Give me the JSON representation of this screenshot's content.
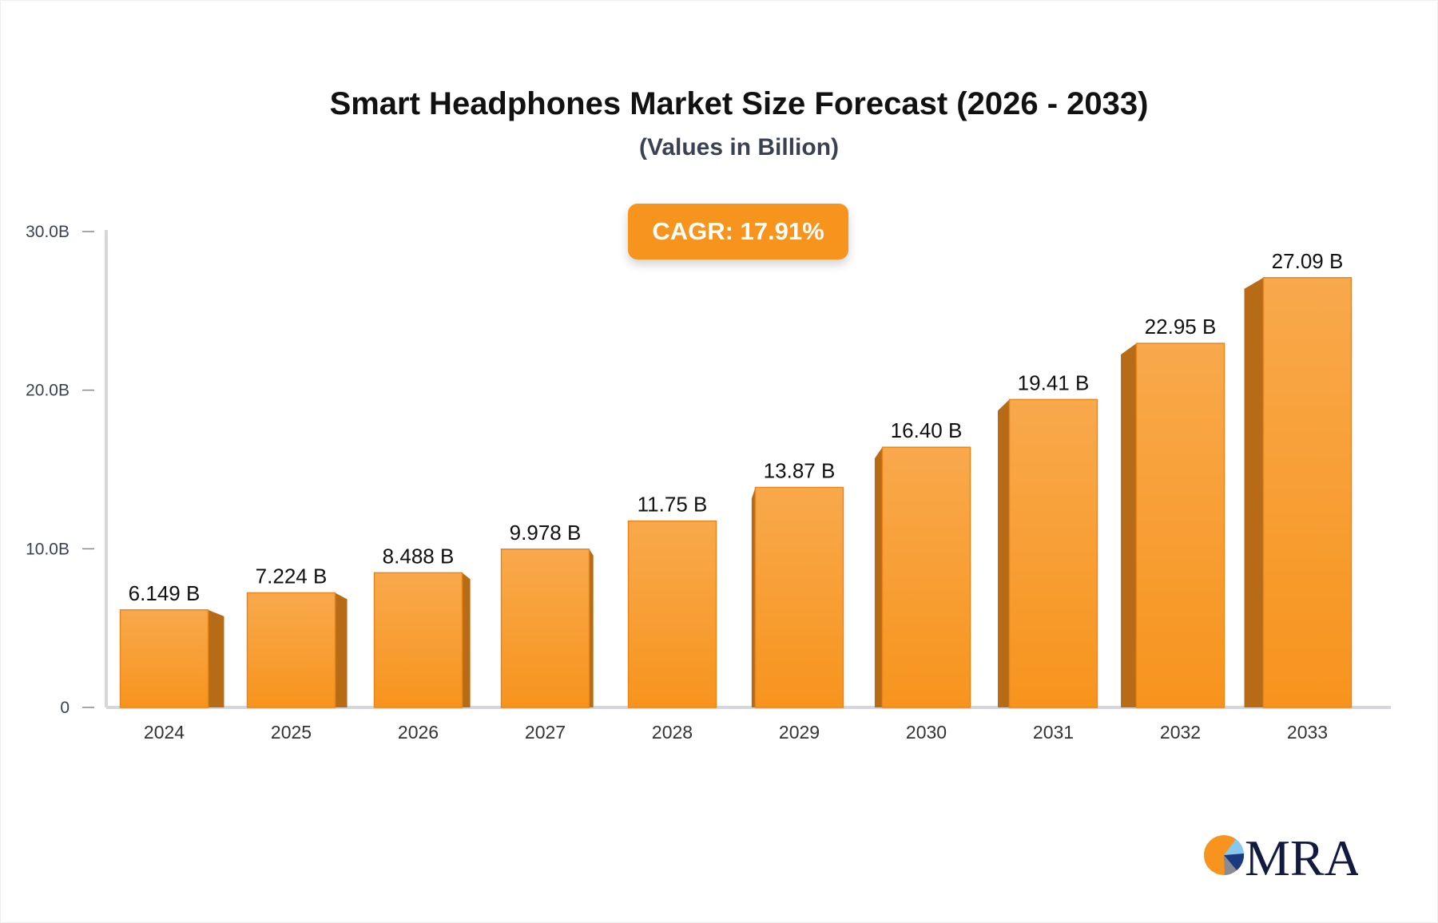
{
  "chart_data": {
    "type": "bar",
    "title": "Smart Headphones Market Size Forecast (2026 - 2033)",
    "subtitle": "(Values in Billion)",
    "annotation": "CAGR: 17.91%",
    "categories": [
      "2024",
      "2025",
      "2026",
      "2027",
      "2028",
      "2029",
      "2030",
      "2031",
      "2032",
      "2033"
    ],
    "values": [
      6.149,
      7.224,
      8.488,
      9.978,
      11.75,
      13.87,
      16.4,
      19.41,
      22.95,
      27.09
    ],
    "data_labels": [
      "6.149 B",
      "7.224 B",
      "8.488 B",
      "9.978 B",
      "11.75 B",
      "13.87 B",
      "16.40 B",
      "19.41 B",
      "22.95 B",
      "27.09 B"
    ],
    "ylim": [
      0,
      30
    ],
    "yticks": [
      0,
      10,
      20,
      30
    ],
    "ytick_labels": [
      "0",
      "10.0B",
      "20.0B",
      "30.0B"
    ],
    "xlabel": "",
    "ylabel": "",
    "grid": false,
    "colors": {
      "bar": "#f7941d",
      "bar_top": "#f8a94c",
      "bar_side": "#b86b17",
      "axis": "#d4d6dc"
    }
  },
  "logo": {
    "text": "MRA"
  }
}
